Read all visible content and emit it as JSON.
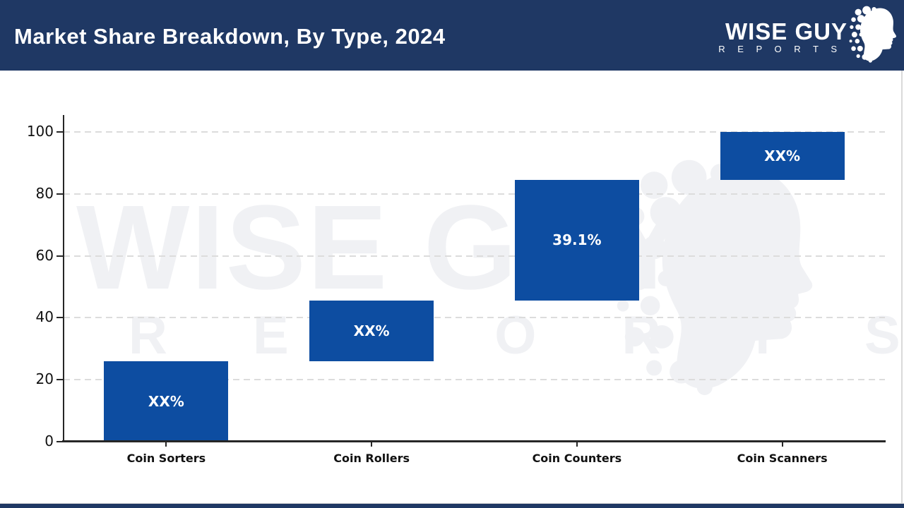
{
  "header": {
    "title": "Market Share Breakdown, By Type, 2024",
    "bg_color": "#1f3864",
    "logo": {
      "line1": "WISE GUY",
      "line2": "R E P O R T S"
    }
  },
  "watermark": {
    "line1": "WISE GUY",
    "line2": "R E P O R T S",
    "color": "#f0f1f4"
  },
  "chart_data": {
    "type": "bar",
    "subtype": "waterfall",
    "title": "Market Share Breakdown, By Type, 2024",
    "categories": [
      "Coin Sorters",
      "Coin Rollers",
      "Coin Counters",
      "Coin Scanners"
    ],
    "bars": [
      {
        "category": "Coin Sorters",
        "start": 0,
        "end": 26,
        "label": "XX%"
      },
      {
        "category": "Coin Rollers",
        "start": 26,
        "end": 45.5,
        "label": "XX%"
      },
      {
        "category": "Coin Counters",
        "start": 45.5,
        "end": 84.6,
        "label": "39.1%"
      },
      {
        "category": "Coin Scanners",
        "start": 84.6,
        "end": 100,
        "label": "XX%"
      }
    ],
    "xlabel": "",
    "ylabel": "",
    "ylim": [
      0,
      100
    ],
    "yticks": [
      0,
      20,
      40,
      60,
      80,
      100
    ],
    "grid": "horizontal-dashed",
    "legend": "none",
    "bar_color": "#0d4da1",
    "bar_label_color": "#ffffff",
    "axis_color": "#262626",
    "gridline_color": "#dcdcdc"
  }
}
